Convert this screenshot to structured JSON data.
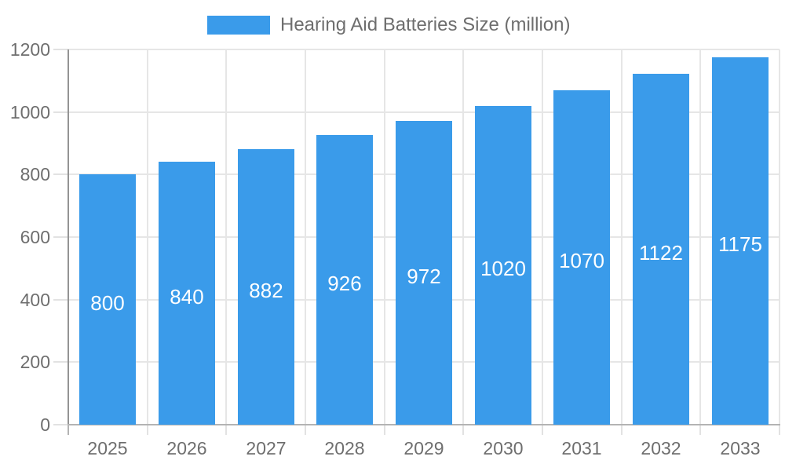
{
  "legend": {
    "label": "Hearing Aid Batteries Size (million)"
  },
  "chart_data": {
    "type": "bar",
    "title": "Hearing Aid Batteries Size (million)",
    "categories": [
      "2025",
      "2026",
      "2027",
      "2028",
      "2029",
      "2030",
      "2031",
      "2032",
      "2033"
    ],
    "values": [
      800,
      840,
      882,
      926,
      972,
      1020,
      1070,
      1122,
      1175
    ],
    "xlabel": "",
    "ylabel": "",
    "ylim": [
      0,
      1200
    ],
    "ytick_step": 200,
    "yticks": [
      0,
      200,
      400,
      600,
      800,
      1000,
      1200
    ],
    "grid": true,
    "legend_position": "top",
    "bar_labels_inside": true
  },
  "colors": {
    "bar": "#3A9BEA",
    "bar_label": "#FFFFFF",
    "grid": "#E6E6E6",
    "tick": "#E2E2E2",
    "axis_y": "#949494",
    "axis_x": "#B3B3B3",
    "text": "#6E6E6E",
    "background": "#FFFFFF"
  }
}
